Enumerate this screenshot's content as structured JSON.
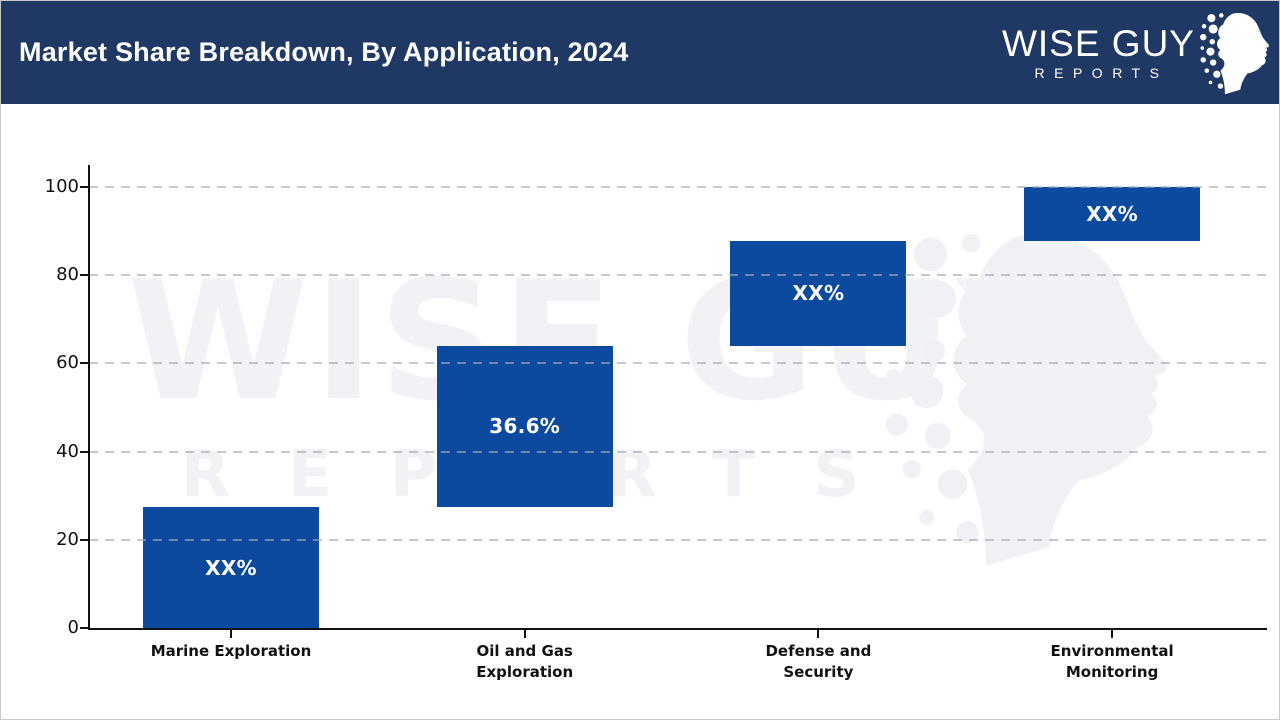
{
  "header": {
    "title": "Market Share Breakdown, By Application, 2024",
    "brand": {
      "line1": "WISE GUY",
      "line2": "REPORTS"
    }
  },
  "watermark": {
    "line1": "WISE GUY",
    "line2": "REPORTS"
  },
  "colors": {
    "header_bg": "#1f3864",
    "bar": "#0b4a9e",
    "grid": "#c9cdd4",
    "axis": "#111111",
    "watermark": "#f1f2f5",
    "bar_label": "#ffffff"
  },
  "chart_data": {
    "type": "bar",
    "subtype": "floating-waterfall",
    "title": "Market Share Breakdown, By Application, 2024",
    "categories": [
      "Marine Exploration",
      "Oil and Gas\nExploration",
      "Defense and\nSecurity",
      "Environmental\nMonitoring"
    ],
    "series": [
      {
        "name": "Market share (%)",
        "segments": [
          {
            "category": "Marine Exploration",
            "start": 0,
            "end": 27.4,
            "label": "XX%"
          },
          {
            "category": "Oil and Gas Exploration",
            "start": 27.4,
            "end": 64.0,
            "label": "36.6%"
          },
          {
            "category": "Defense and Security",
            "start": 64.0,
            "end": 87.7,
            "label": "XX%"
          },
          {
            "category": "Environmental Monitoring",
            "start": 87.7,
            "end": 100,
            "label": "XX%"
          }
        ]
      }
    ],
    "ylim": [
      0,
      105
    ],
    "yticks": [
      0,
      20,
      40,
      60,
      80,
      100
    ],
    "grid": {
      "horizontal": true,
      "style": "dashed"
    },
    "legend": "none",
    "bar_color": "#0b4a9e"
  }
}
